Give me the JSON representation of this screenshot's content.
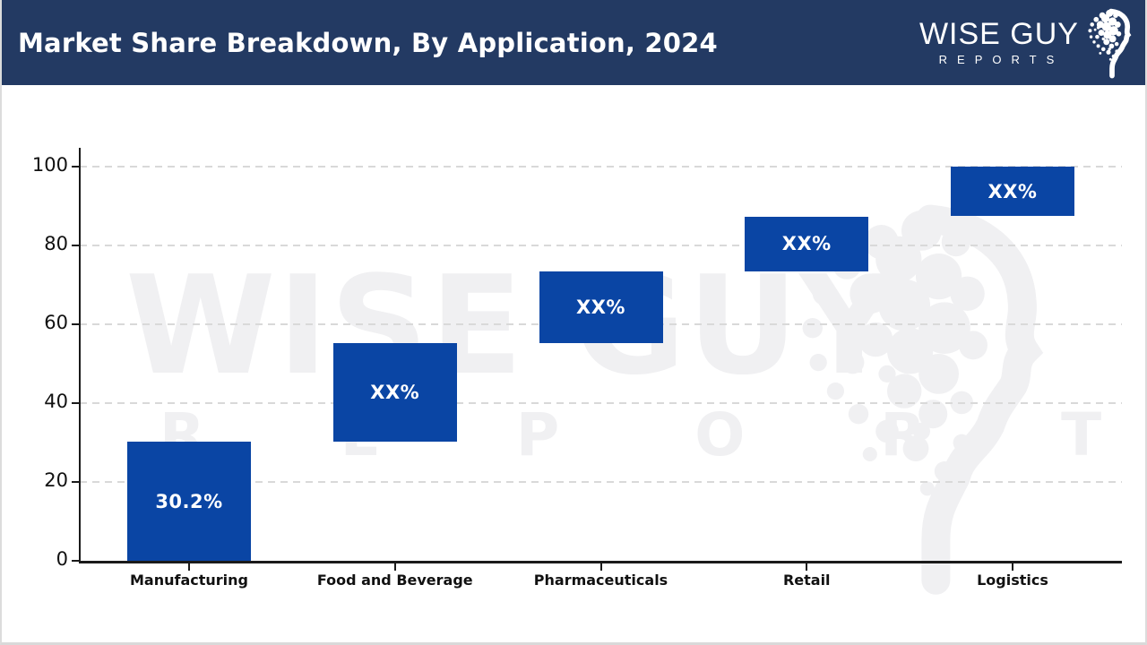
{
  "header": {
    "title": "Market Share Breakdown, By Application, 2024",
    "logo_line1": "WISE GUY",
    "logo_line2": "REPORTS"
  },
  "watermark": {
    "line1": "WISE GUY",
    "line2": "REPORTS"
  },
  "colors": {
    "header_bg": "#233a63",
    "bar_blue": "#0a45a4",
    "gridline_gray": "#d9d9d9",
    "axis_black": "#1a1a1a",
    "bar_label_white": "#ffffff",
    "watermark_gray": "#f0f0f2"
  },
  "chart_data": {
    "type": "bar",
    "subtype": "floating-waterfall",
    "title": "Market Share Breakdown, By Application, 2024",
    "categories": [
      "Manufacturing",
      "Food and Beverage",
      "Pharmaceuticals",
      "Retail",
      "Logistics"
    ],
    "segments": [
      {
        "category": "Manufacturing",
        "start": 0,
        "end": 30.2,
        "label": "30.2%"
      },
      {
        "category": "Food and Beverage",
        "start": 30.2,
        "end": 55.3,
        "label": "XX%"
      },
      {
        "category": "Pharmaceuticals",
        "start": 55.3,
        "end": 73.3,
        "label": "XX%"
      },
      {
        "category": "Retail",
        "start": 73.4,
        "end": 87.3,
        "label": "XX%"
      },
      {
        "category": "Logistics",
        "start": 87.5,
        "end": 100,
        "label": "XX%"
      }
    ],
    "ylabel": "",
    "xlabel": "",
    "yticks": [
      0,
      20,
      40,
      60,
      80,
      100
    ],
    "ylim": [
      0,
      105
    ],
    "grid": "dashed-horizontal",
    "legend": "none"
  }
}
